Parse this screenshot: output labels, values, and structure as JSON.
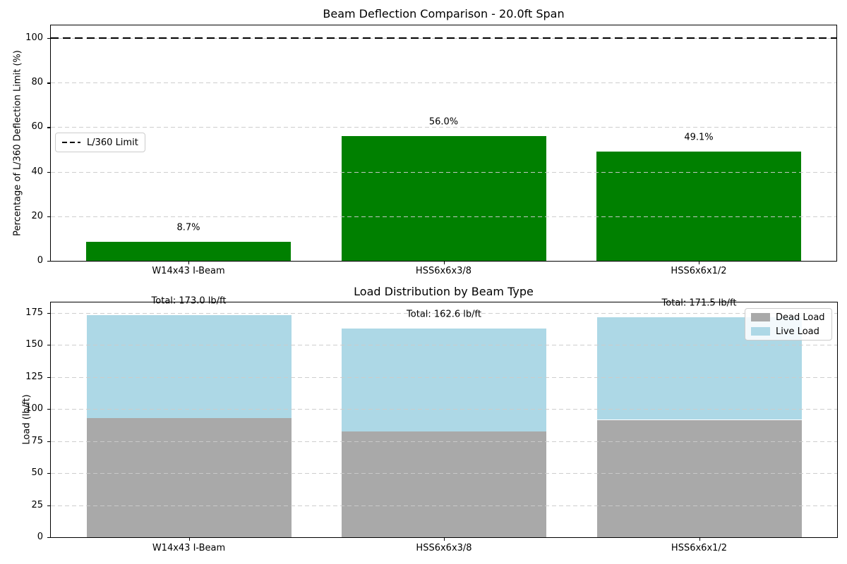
{
  "figure": {
    "background": "#ffffff"
  },
  "chart_data": [
    {
      "type": "bar",
      "title": "Beam Deflection Comparison - 20.0ft Span",
      "ylabel": "Percentage of L/360 Deflection Limit (%)",
      "xlabel": "",
      "categories": [
        "W14x43 I-Beam",
        "HSS6x6x3/8",
        "HSS6x6x1/2"
      ],
      "values": [
        8.7,
        56.0,
        49.1
      ],
      "bar_value_labels": [
        "8.7%",
        "56.0%",
        "49.1%"
      ],
      "bar_color": "#008000",
      "yticks": [
        0,
        20,
        40,
        60,
        80,
        100
      ],
      "ylim": [
        0,
        105.7
      ],
      "grid": "dashed-horizontal",
      "limit_line": {
        "value": 100,
        "style": "dashed",
        "color": "#000000",
        "legend_label": "L/360 Limit"
      },
      "legend_position": "center-left"
    },
    {
      "type": "stacked-bar",
      "title": "Load Distribution by Beam Type",
      "ylabel": "Load (lb/ft)",
      "xlabel": "",
      "categories": [
        "W14x43 I-Beam",
        "HSS6x6x3/8",
        "HSS6x6x1/2"
      ],
      "series": [
        {
          "name": "Dead Load",
          "color": "#a9a9a9",
          "values": [
            93.0,
            82.6,
            91.5
          ]
        },
        {
          "name": "Live Load",
          "color": "#add8e6",
          "values": [
            80.0,
            80.0,
            80.0
          ]
        }
      ],
      "totals": [
        173.0,
        162.6,
        171.5
      ],
      "total_labels": [
        "Total: 173.0 lb/ft",
        "Total: 162.6 lb/ft",
        "Total: 171.5 lb/ft"
      ],
      "yticks": [
        0,
        25,
        50,
        75,
        100,
        125,
        150,
        175
      ],
      "ylim": [
        0,
        183
      ],
      "grid": "dashed-horizontal",
      "legend_position": "upper-right"
    }
  ]
}
